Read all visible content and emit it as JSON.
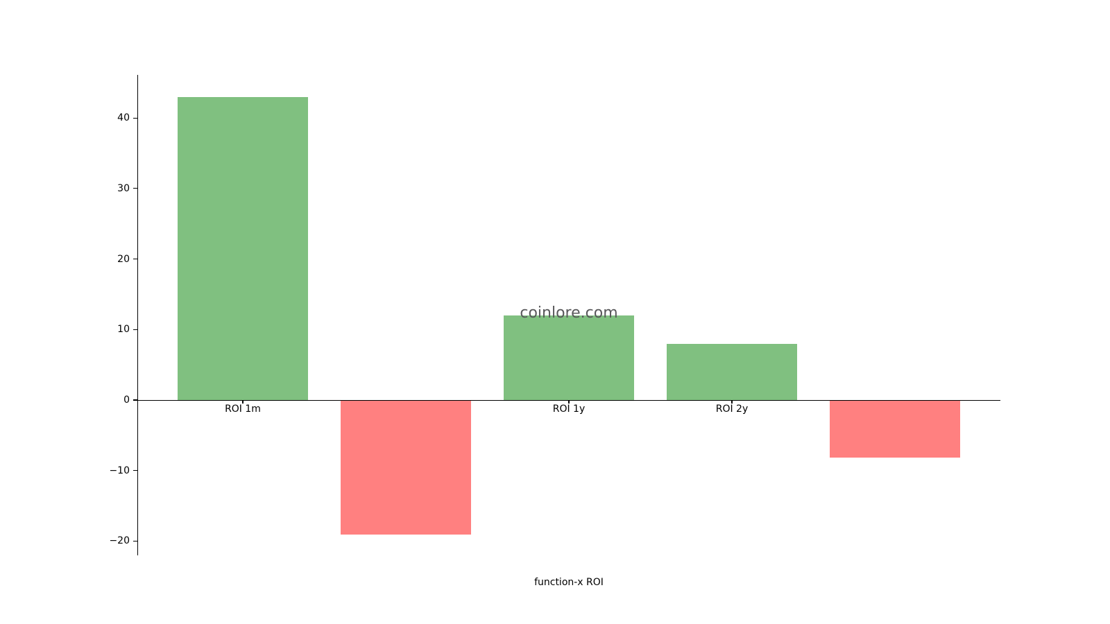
{
  "watermark": {
    "text": "coinlore.com",
    "color": "#58585a"
  },
  "chart_data": {
    "type": "bar",
    "title": "",
    "xlabel": "function-x ROI",
    "ylabel": "",
    "categories": [
      "ROI 1m",
      "",
      "ROI 1y",
      "ROI 2y",
      ""
    ],
    "values": [
      43,
      -19,
      12,
      8,
      -8
    ],
    "yticks": [
      40,
      30,
      20,
      10,
      0,
      -10,
      -20
    ],
    "ytick_labels": [
      "40",
      "30",
      "20",
      "10",
      "0",
      "−10",
      "−20"
    ],
    "ylim": [
      -22,
      46
    ],
    "grid": false,
    "legend": false,
    "bar_color_rule": "green for positive values, red for negative values",
    "colors": {
      "positive": "#80c080",
      "negative": "#ff8080",
      "axis": "#000000",
      "tick_text": "#000000"
    }
  }
}
